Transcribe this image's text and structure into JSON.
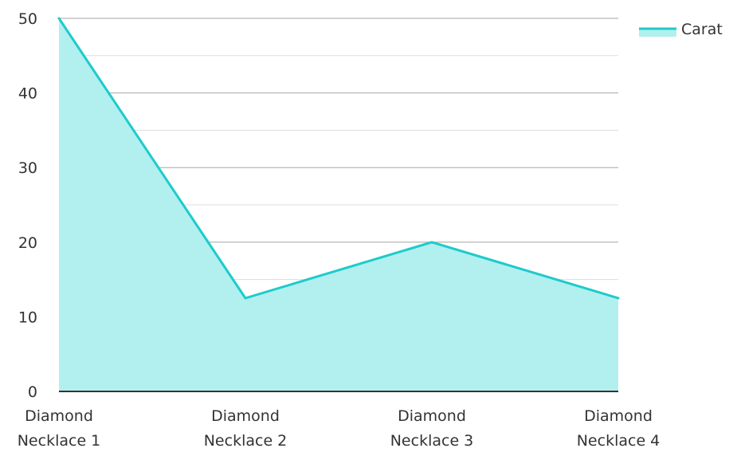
{
  "chart_data": {
    "type": "area",
    "categories": [
      "Diamond Necklace 1",
      "Diamond Necklace 2",
      "Diamond Necklace 3",
      "Diamond Necklace 4"
    ],
    "category_lines": [
      [
        "Diamond",
        "Necklace 1"
      ],
      [
        "Diamond",
        "Necklace 2"
      ],
      [
        "Diamond",
        "Necklace 3"
      ],
      [
        "Diamond",
        "Necklace 4"
      ]
    ],
    "series": [
      {
        "name": "Carat",
        "values": [
          50,
          12.5,
          20,
          12.5
        ]
      }
    ],
    "yticks": [
      "0",
      "10",
      "20",
      "30",
      "40",
      "50"
    ],
    "ylim": [
      0,
      50
    ],
    "title": "",
    "xlabel": "",
    "ylabel": "",
    "grid": true,
    "legend_position": "top-right",
    "colors": {
      "line": "#1ECBCB",
      "fill": "#B2EFEF",
      "major_grid": "#A6A6A6",
      "minor_grid": "#DDDDDD",
      "axis": "#333333",
      "text": "#333333"
    }
  }
}
